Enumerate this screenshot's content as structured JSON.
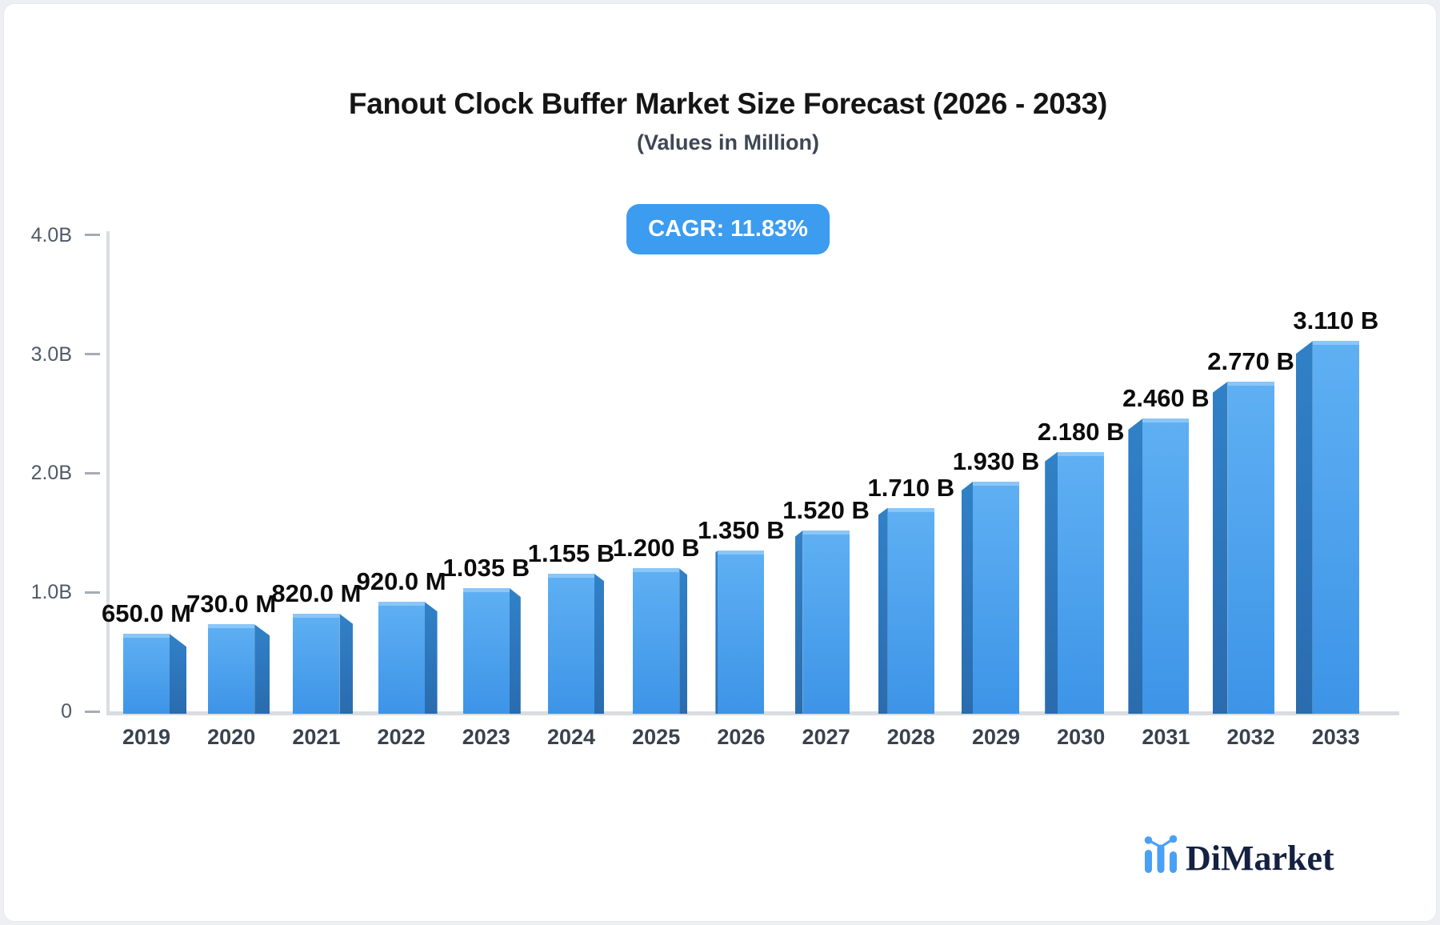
{
  "header": {
    "title": "Fanout Clock Buffer Market Size Forecast (2026 - 2033)",
    "subtitle": "(Values in Million)",
    "cagr_badge": "CAGR: 11.83%"
  },
  "brand": {
    "name": "DiMarket",
    "icon": "bar-chart-logo-icon",
    "icon_color": "#4aa0f4",
    "text_color": "#142140"
  },
  "chart_data": {
    "type": "bar",
    "title": "Fanout Clock Buffer Market Size Forecast (2026 - 2033)",
    "subtitle": "(Values in Million)",
    "cagr_percent": "11.83%",
    "categories": [
      "2019",
      "2020",
      "2021",
      "2022",
      "2023",
      "2024",
      "2025",
      "2026",
      "2027",
      "2028",
      "2029",
      "2030",
      "2031",
      "2032",
      "2033"
    ],
    "values_billions": [
      0.65,
      0.73,
      0.82,
      0.92,
      1.035,
      1.155,
      1.2,
      1.35,
      1.52,
      1.71,
      1.93,
      2.18,
      2.46,
      2.77,
      3.11
    ],
    "value_labels": [
      "650.0 M",
      "730.0 M",
      "820.0 M",
      "920.0 M",
      "1.035 B",
      "1.155 B",
      "1.200 B",
      "1.350 B",
      "1.520 B",
      "1.710 B",
      "1.930 B",
      "2.180 B",
      "2.460 B",
      "2.770 B",
      "3.110 B"
    ],
    "ytick_values": [
      0,
      1,
      2,
      3,
      4
    ],
    "ytick_labels": [
      "0",
      "1.0B",
      "2.0B",
      "3.0B",
      "4.0B"
    ],
    "ylim": [
      0,
      4
    ],
    "grid": false,
    "legend": false,
    "style": "3d-perspective-bars",
    "colors": {
      "bar_front_top": "#5fb0f3",
      "bar_front_bottom": "#3d94e7",
      "bar_side": "#2d75bb",
      "bar_top_highlight": "#8ac6f8",
      "badge": "#3b9cf0",
      "axis_line": "#d9dce0"
    }
  }
}
